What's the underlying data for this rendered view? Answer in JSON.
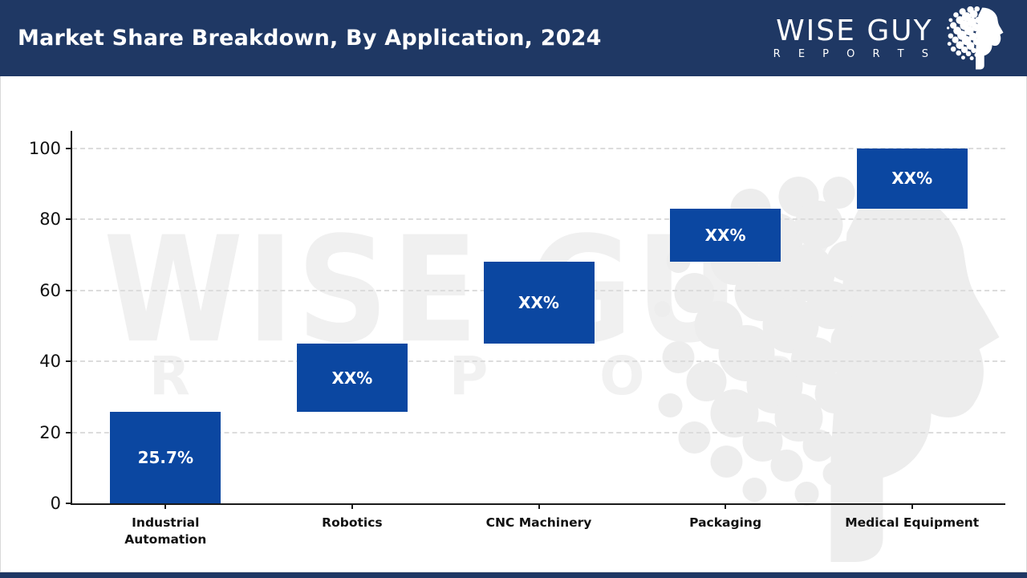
{
  "header": {
    "title": "Market Share Breakdown, By Application, 2024",
    "logo": {
      "line1": "WISE GUY",
      "line2": "R E P O R T S",
      "icon": "dotted-head-profile"
    },
    "background_color": "#1f3864"
  },
  "watermark": {
    "line1": "WISE GUY",
    "line2": "R E P O R T S"
  },
  "chart_data": {
    "type": "bar",
    "subtype": "waterfall",
    "title": "Market Share Breakdown, By Application, 2024",
    "xlabel": "",
    "ylabel": "",
    "categories": [
      "Industrial Automation",
      "Robotics",
      "CNC Machinery",
      "Packaging",
      "Medical Equipment"
    ],
    "tick_labels": [
      "Industrial\nAutomation",
      "Robotics",
      "CNC Machinery",
      "Packaging",
      "Medical Equipment"
    ],
    "segments": [
      {
        "category": "Industrial Automation",
        "start": 0,
        "end": 25.7,
        "label": "25.7%"
      },
      {
        "category": "Robotics",
        "start": 25.7,
        "end": 45,
        "label": "XX%"
      },
      {
        "category": "CNC Machinery",
        "start": 45,
        "end": 68,
        "label": "XX%"
      },
      {
        "category": "Packaging",
        "start": 68,
        "end": 83,
        "label": "XX%"
      },
      {
        "category": "Medical Equipment",
        "start": 83,
        "end": 100,
        "label": "XX%"
      }
    ],
    "y_ticks": [
      0,
      20,
      40,
      60,
      80,
      100
    ],
    "ylim": [
      0,
      105
    ],
    "grid": "horizontal dashed",
    "legend": "none",
    "bar_color": "#0b47a1",
    "bar_label_color": "#ffffff",
    "axis_color": "#1a1a1a",
    "gridline_color": "#dcdcdc"
  }
}
